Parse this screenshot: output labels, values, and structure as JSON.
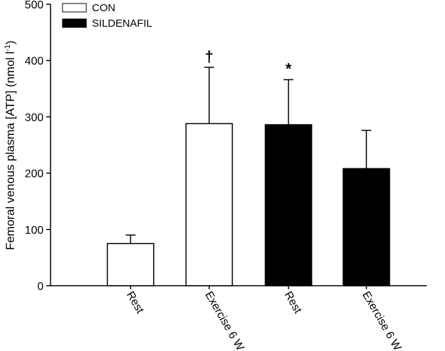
{
  "chart_data": {
    "type": "bar",
    "title": "",
    "xlabel": "",
    "ylabel": "Femoral venous plasma [ATP] (nmol l",
    "ylabel_sup": "-1",
    "ylabel_close": ")",
    "ylim": [
      0,
      500
    ],
    "yticks": [
      0,
      100,
      200,
      300,
      400,
      500
    ],
    "categories": [
      "Rest",
      "Exercise 6 W",
      "Rest",
      "Exercise 6 W"
    ],
    "values": [
      75,
      288,
      286,
      208
    ],
    "errors": [
      15,
      100,
      80,
      68
    ],
    "groups": [
      "CON",
      "CON",
      "SILDENAFIL",
      "SILDENAFIL"
    ],
    "annotations": [
      "",
      "†",
      "*",
      ""
    ],
    "legend": [
      {
        "name": "CON",
        "color": "#ffffff"
      },
      {
        "name": "SILDENAFIL",
        "color": "#000000"
      }
    ],
    "legend_position": "top-left",
    "grid": false
  }
}
